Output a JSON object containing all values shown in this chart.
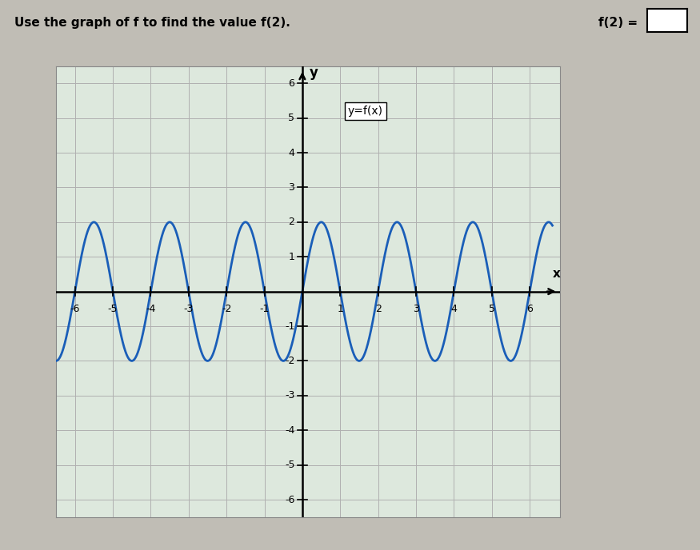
{
  "title": "Use the graph of f to find the value f(2).",
  "f2_label": "f(2) =",
  "xlabel": "x",
  "ylabel": "y",
  "func_label": "y=f(x)",
  "xlim": [
    -6.5,
    6.8
  ],
  "ylim": [
    -6.5,
    6.5
  ],
  "xticks": [
    -6,
    -5,
    -4,
    -3,
    -2,
    -1,
    1,
    2,
    3,
    4,
    5,
    6
  ],
  "yticks": [
    -6,
    -5,
    -4,
    -3,
    -2,
    -1,
    1,
    2,
    3,
    4,
    5,
    6
  ],
  "amplitude": 2,
  "x_start": -6.6,
  "x_end": 6.6,
  "line_color": "#1a5eb8",
  "line_width": 2.0,
  "grid_color": "#b0b0b0",
  "bg_color_upper": "#dce8d8",
  "bg_color_lower": "#d0d0c8",
  "bg_color_whole": "#c8c8c0",
  "axis_color": "#000000",
  "outer_bg": "#b8b8b0"
}
